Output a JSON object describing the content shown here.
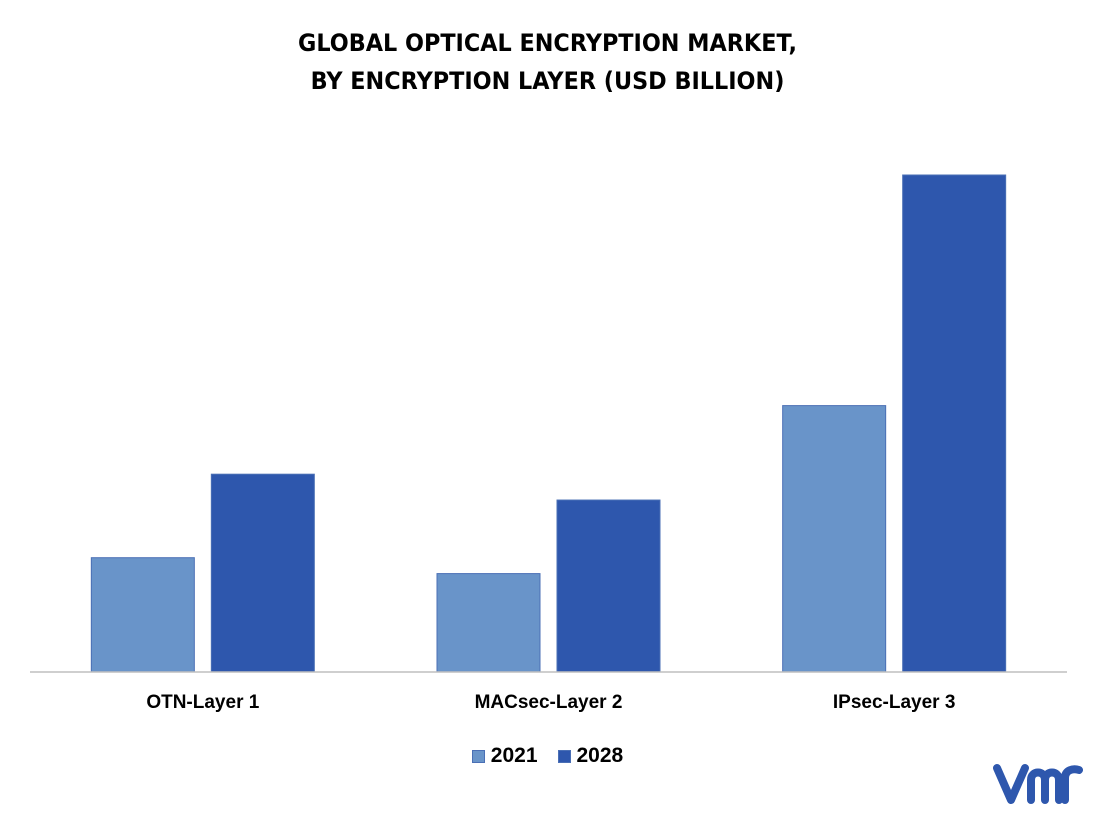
{
  "chart_data": {
    "type": "bar",
    "title_lines": [
      "GLOBAL OPTICAL ENCRYPTION MARKET,",
      "BY ENCRYPTION LAYER (USD BILLION)"
    ],
    "categories": [
      "OTN-Layer 1",
      "MACsec-Layer 2",
      "IPsec-Layer 3"
    ],
    "series": [
      {
        "name": "2021",
        "color": "#6994c9",
        "values": [
          1.15,
          0.99,
          2.68
        ]
      },
      {
        "name": "2028",
        "color": "#2e57ad",
        "values": [
          1.99,
          1.73,
          5.0
        ]
      }
    ],
    "ylim": [
      0,
      5.0
    ],
    "grid": false,
    "legend_position": "bottom"
  },
  "brand": {
    "logo_icon": "vmr-logo-icon",
    "logo_color": "#2e57ad"
  }
}
